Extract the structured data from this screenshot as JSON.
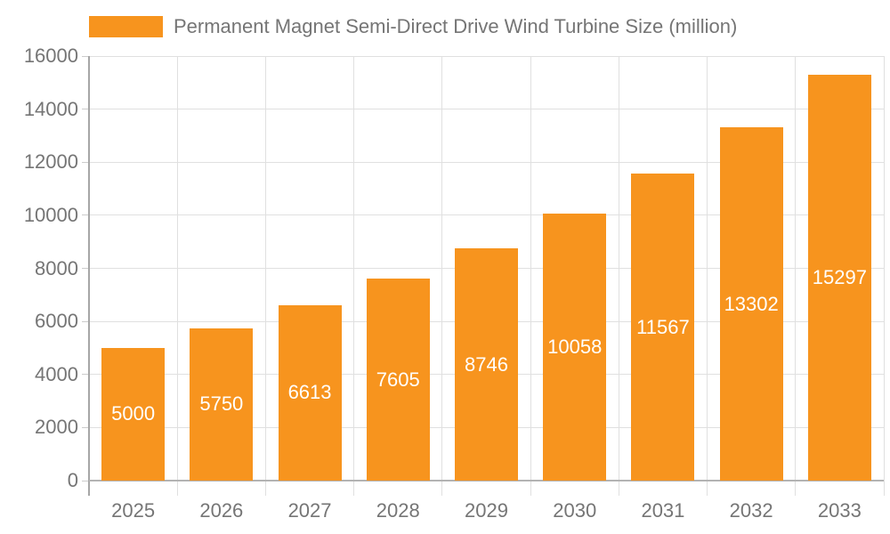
{
  "chart_data": {
    "type": "bar",
    "title": "Permanent Magnet Semi-Direct Drive Wind Turbine Size (million)",
    "legend_entries": [
      "Permanent Magnet Semi-Direct Drive Wind Turbine Size (million)"
    ],
    "legend_position": "top-left",
    "categories": [
      "2025",
      "2026",
      "2027",
      "2028",
      "2029",
      "2030",
      "2031",
      "2032",
      "2033"
    ],
    "values": [
      5000,
      5750,
      6613,
      7605,
      8746,
      10058,
      11567,
      13302,
      15297
    ],
    "xlabel": "",
    "ylabel": "",
    "ylim": [
      0,
      16000
    ],
    "yticks": [
      0,
      2000,
      4000,
      6000,
      8000,
      10000,
      12000,
      14000,
      16000
    ],
    "grid": "on",
    "bar_value_labels_shown": true
  },
  "colors": {
    "bar": "#f7941e",
    "bar_value_label": "#ffffff",
    "axis_text": "#757575",
    "legend_text": "#757575",
    "gridline": "#e0e0e0",
    "axis_line": "#a6a6a6",
    "background": "#ffffff"
  }
}
